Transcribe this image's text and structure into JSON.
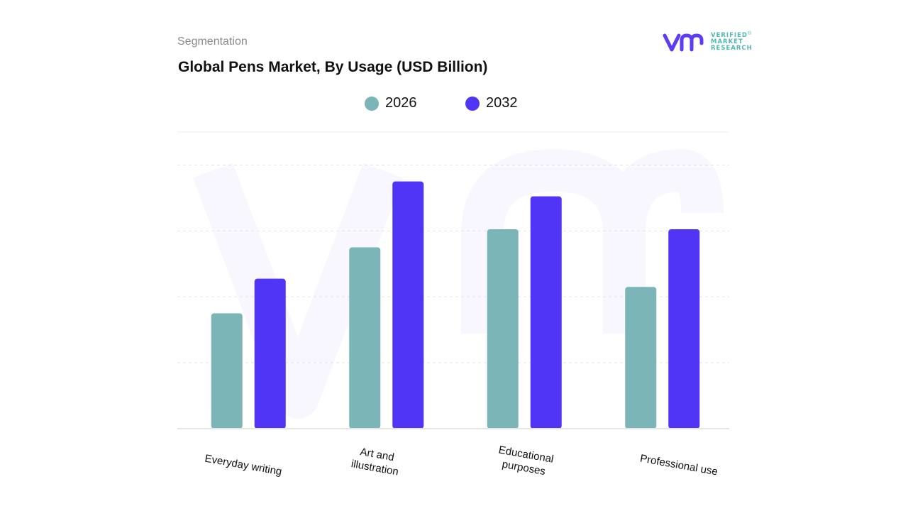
{
  "header": {
    "segment_label": "Segmentation",
    "title": "Global Pens Market, By Usage (USD Billion)"
  },
  "logo": {
    "text": "VERIFIED\nMARKET\nRESEARCH",
    "registered": "®",
    "colors": {
      "mark": "#5b3df5",
      "text": "#4fb8b0"
    }
  },
  "chart_data": {
    "type": "bar",
    "categories": [
      "Everyday writing",
      "Art and\nillustration",
      "Educational\npurposes",
      "Professional use"
    ],
    "series": [
      {
        "name": "2026",
        "color": "#7bb5b8",
        "values": [
          3.5,
          5.5,
          6.05,
          4.3
        ]
      },
      {
        "name": "2032",
        "color": "#5135f7",
        "values": [
          4.55,
          7.5,
          7.05,
          6.05
        ]
      }
    ],
    "ylim": [
      0,
      9
    ],
    "gridlines": [
      2,
      4,
      6,
      8
    ],
    "grid": true,
    "legend_position": "top-center",
    "xlabel": "",
    "ylabel": ""
  }
}
